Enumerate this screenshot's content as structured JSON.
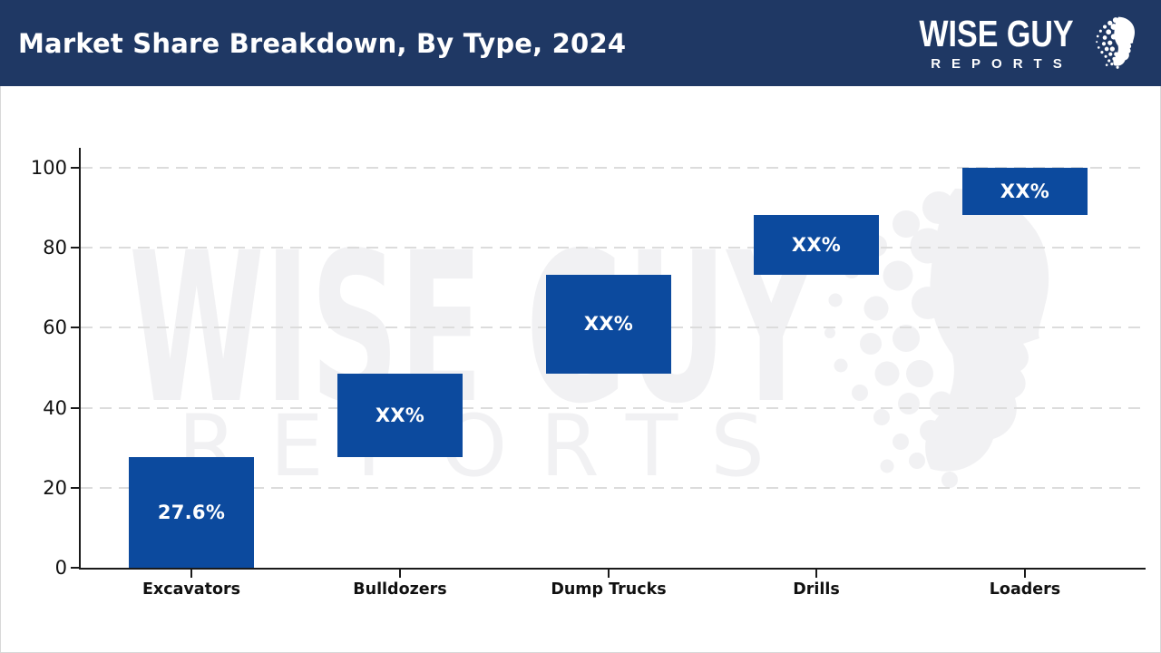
{
  "header": {
    "title": "Market Share Breakdown, By Type, 2024",
    "logo_line1": "WISE GUY",
    "logo_line2": "REPORTS",
    "bg_color": "#1F3864",
    "text_color": "#FFFFFF"
  },
  "watermark": {
    "line1": "WISE GUY",
    "line2": "REPORTS",
    "color": "#F1F1F3"
  },
  "chart_data": {
    "type": "bar",
    "subtype": "floating-segment-waterfall",
    "title": "Market Share Breakdown, By Type, 2024",
    "categories": [
      "Excavators",
      "Bulldozers",
      "Dump Trucks",
      "Drills",
      "Loaders"
    ],
    "segments": [
      {
        "category": "Excavators",
        "start": 0,
        "end": 27.6,
        "increment": 27.6,
        "label": "27.6%"
      },
      {
        "category": "Bulldozers",
        "start": 27.6,
        "end": 48.5,
        "increment": 20.9,
        "label": "XX%"
      },
      {
        "category": "Dump Trucks",
        "start": 48.5,
        "end": 73.3,
        "increment": 24.8,
        "label": "XX%"
      },
      {
        "category": "Drills",
        "start": 73.3,
        "end": 88.1,
        "increment": 14.8,
        "label": "XX%"
      },
      {
        "category": "Loaders",
        "start": 88.1,
        "end": 100,
        "increment": 11.9,
        "label": "XX%"
      }
    ],
    "xlabel": "",
    "ylabel": "",
    "ylim": [
      0,
      100
    ],
    "yticks": [
      0,
      20,
      40,
      60,
      80,
      100
    ],
    "grid": "horizontal-dashed",
    "legend": "none",
    "bar_color": "#0C4A9E",
    "bar_label_color": "#FFFFFF",
    "axis_color": "#1A1A1A",
    "gridline_color": "#DCDCDC",
    "tick_label_color": "#111111"
  }
}
